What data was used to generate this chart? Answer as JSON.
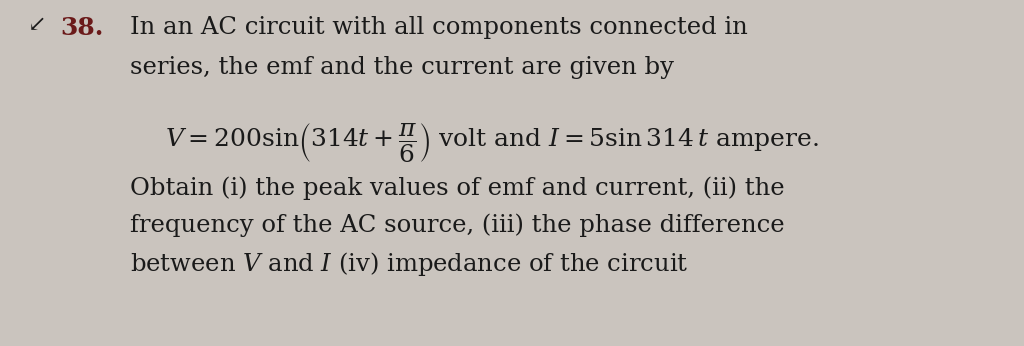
{
  "background_color": "#cac4be",
  "text_color": "#1a1a1a",
  "number_color": "#6b1a1a",
  "tick_color": "#1a1a1a",
  "line1": "In an AC circuit with all components connected in",
  "line2": "series, the emf and the current are given by",
  "formula": "$V = 200\\sin\\!\\left(314t + \\dfrac{\\pi}{6}\\right)$ volt and $I = 5\\sin 314\\,t$ ampere.",
  "obtain_line1": "Obtain (i) the peak values of emf and current, (ii) the",
  "obtain_line2": "frequency of the AC source, (iii) the phase difference",
  "obtain_line3": "between $V$ and $I$ (iv) impedance of the circuit",
  "font_size_main": 17.5,
  "font_size_formula": 18,
  "font_size_number": 18,
  "font_size_tick": 17
}
